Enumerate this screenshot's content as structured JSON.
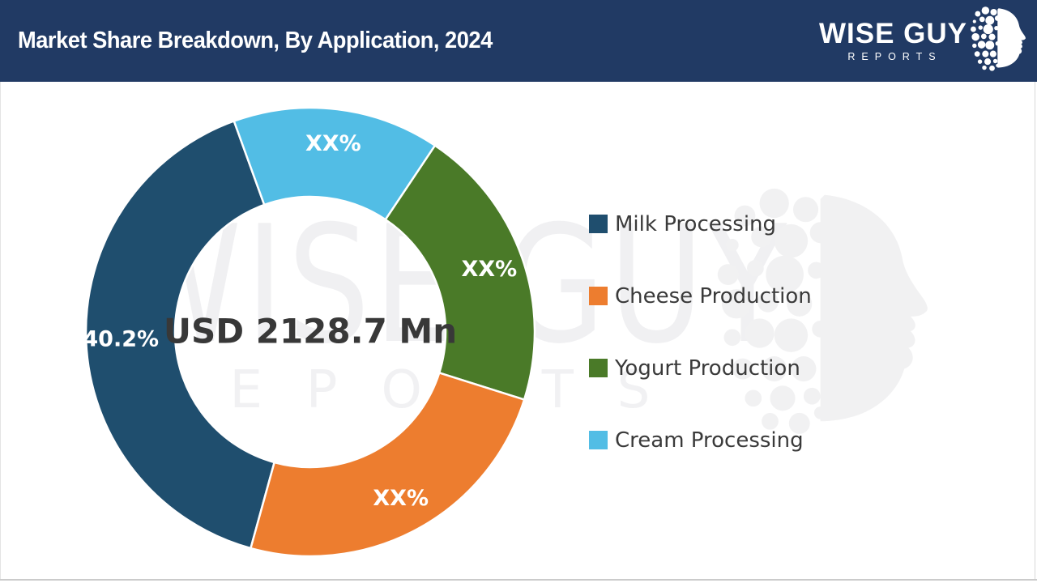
{
  "header": {
    "title": "Market Share Breakdown, By Application, 2024",
    "logo": {
      "brand": "WISE GUY",
      "sub": "REPORTS"
    }
  },
  "watermark": {
    "brand": "WISE GUY",
    "sub": "REPORTS"
  },
  "chart_data": {
    "type": "pie",
    "subtype": "donut",
    "title": "Market Share Breakdown, By Application, 2024",
    "center_label": "USD 2128.7 Mn",
    "legend_position": "right",
    "start_angle_deg": 195.4,
    "clockwise": true,
    "draw_order": [
      0,
      3,
      2,
      1
    ],
    "segments": [
      {
        "name": "Milk Processing",
        "label": "40.2%",
        "value": 40.2,
        "color": "#1F4E6E"
      },
      {
        "name": "Cheese Production",
        "label": "XX%",
        "value": 24.4,
        "color": "#ED7D2F"
      },
      {
        "name": "Yogurt Production",
        "label": "XX%",
        "value": 20.5,
        "color": "#4A7A28"
      },
      {
        "name": "Cream Processing",
        "label": "XX%",
        "value": 14.9,
        "color": "#52BDE5"
      }
    ]
  }
}
